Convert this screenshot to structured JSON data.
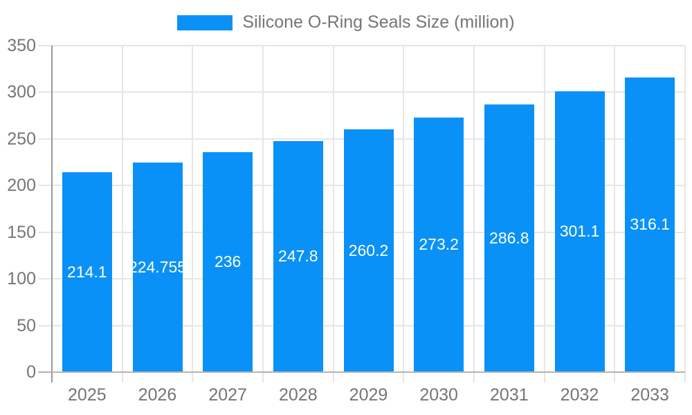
{
  "chart_data": {
    "type": "bar",
    "title": "Silicone O-Ring Seals Size (million)",
    "legend_position": "top-center",
    "categories": [
      "2025",
      "2026",
      "2027",
      "2028",
      "2029",
      "2030",
      "2031",
      "2032",
      "2033"
    ],
    "series": [
      {
        "name": "Silicone O-Ring Seals Size (million)",
        "values": [
          214.1,
          224.755,
          236,
          247.8,
          260.2,
          273.2,
          286.8,
          301.1,
          316.1
        ],
        "value_labels": [
          "214.1",
          "224.755",
          "236",
          "247.8",
          "260.2",
          "273.2",
          "286.8",
          "301.1",
          "316.1"
        ]
      }
    ],
    "xlabel": "",
    "ylabel": "",
    "ylim": [
      0,
      350
    ],
    "ytick_step": 50,
    "ytick_labels": [
      "0",
      "50",
      "100",
      "150",
      "200",
      "250",
      "300",
      "350"
    ],
    "grid": true,
    "value_label_position": "inside-center",
    "colors": {
      "bar": "#0a91f8",
      "grid": "#e6e6e6",
      "y_axis": "#999999",
      "baseline": "#b3b3b3",
      "tick_text": "#757575",
      "value_text": "#ffffff",
      "background": "#ffffff"
    }
  }
}
